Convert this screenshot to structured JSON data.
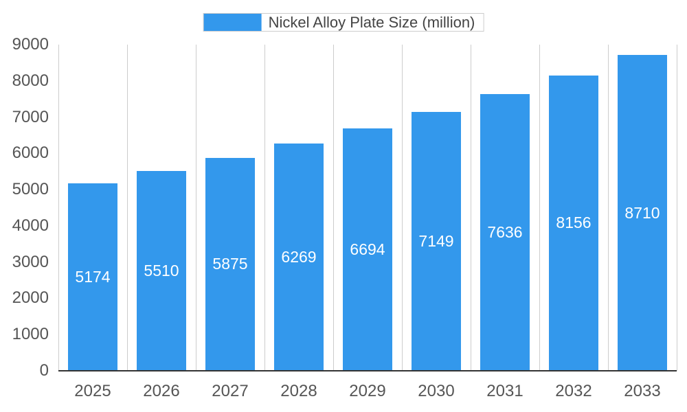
{
  "legend": {
    "label": "Nickel Alloy Plate Size (million)"
  },
  "chart_data": {
    "type": "bar",
    "title": "Nickel Alloy Plate Size (million)",
    "categories": [
      "2025",
      "2026",
      "2027",
      "2028",
      "2029",
      "2030",
      "2031",
      "2032",
      "2033"
    ],
    "values": [
      5174,
      5510,
      5875,
      6269,
      6694,
      7149,
      7636,
      8156,
      8710
    ],
    "xlabel": "",
    "ylabel": "",
    "ylim": [
      0,
      9000
    ],
    "ytick_step": 1000,
    "grid": "vertical-only",
    "legend_position": "top-center",
    "value_labels": "inside-bar-centered",
    "colors": {
      "bar": "#3398EC",
      "grid": "#CCCCCC",
      "axis_text": "#555555",
      "baseline": "#333333",
      "value_label": "#FFFFFF",
      "legend_text": "#444444"
    }
  }
}
